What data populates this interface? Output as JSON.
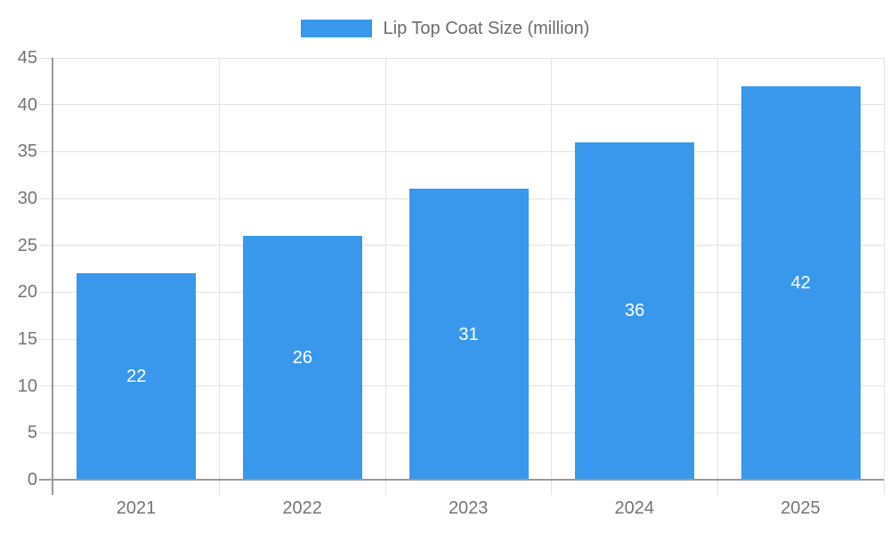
{
  "legend": {
    "label": "Lip Top Coat Size (million)"
  },
  "chart_data": {
    "type": "bar",
    "title": "Lip Top Coat Size (million)",
    "categories": [
      "2021",
      "2022",
      "2023",
      "2024",
      "2025"
    ],
    "values": [
      22,
      26,
      31,
      36,
      42
    ],
    "xlabel": "",
    "ylabel": "",
    "ylim": [
      0,
      45
    ],
    "ytick_step": 5,
    "yticks": [
      0,
      5,
      10,
      15,
      20,
      25,
      30,
      35,
      40,
      45
    ],
    "grid": true,
    "legend_position": "top",
    "bar_color": "#3998EC",
    "value_label_color": "#FFFFFF",
    "axis_text_color": "#757575",
    "grid_color": "#E3E3E6",
    "axis_line_color": "#9A9A9A",
    "background_color": "#FFFFFF"
  }
}
